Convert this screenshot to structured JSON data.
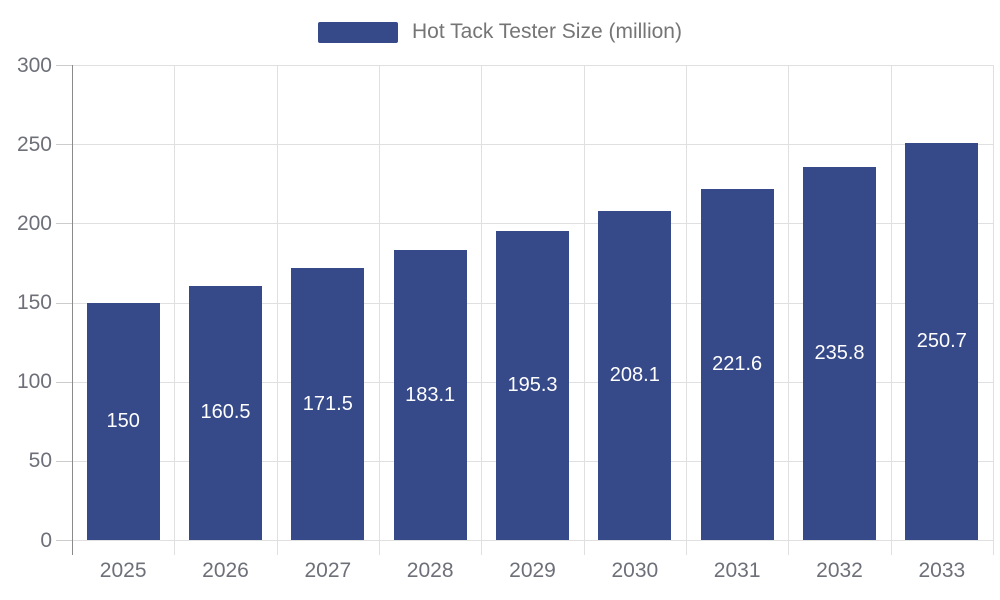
{
  "legend": {
    "label": "Hot Tack Tester Size (million)"
  },
  "chart_data": {
    "type": "bar",
    "title": "Hot Tack Tester Size (million)",
    "series_name": "Hot Tack Tester Size (million)",
    "categories": [
      "2025",
      "2026",
      "2027",
      "2028",
      "2029",
      "2030",
      "2031",
      "2032",
      "2033"
    ],
    "values": [
      150,
      160.5,
      171.5,
      183.1,
      195.3,
      208.1,
      221.6,
      235.8,
      250.7
    ],
    "value_labels": [
      "150",
      "160.5",
      "171.5",
      "183.1",
      "195.3",
      "208.1",
      "221.6",
      "235.8",
      "250.7"
    ],
    "xlabel": "",
    "ylabel": "",
    "ylim": [
      0,
      300
    ],
    "ytick_interval": 50,
    "ytick_labels": [
      "0",
      "50",
      "100",
      "150",
      "200",
      "250",
      "300"
    ],
    "grid": true,
    "legend_position": "top"
  },
  "colors": {
    "bar": "#364989",
    "grid": "#e0e0e0",
    "axis_line": "#8a8a8a",
    "tick": "#cccccc",
    "axis_label": "#6e7079",
    "legend_text": "#757575",
    "value_label": "#ffffff",
    "background": "#ffffff"
  }
}
